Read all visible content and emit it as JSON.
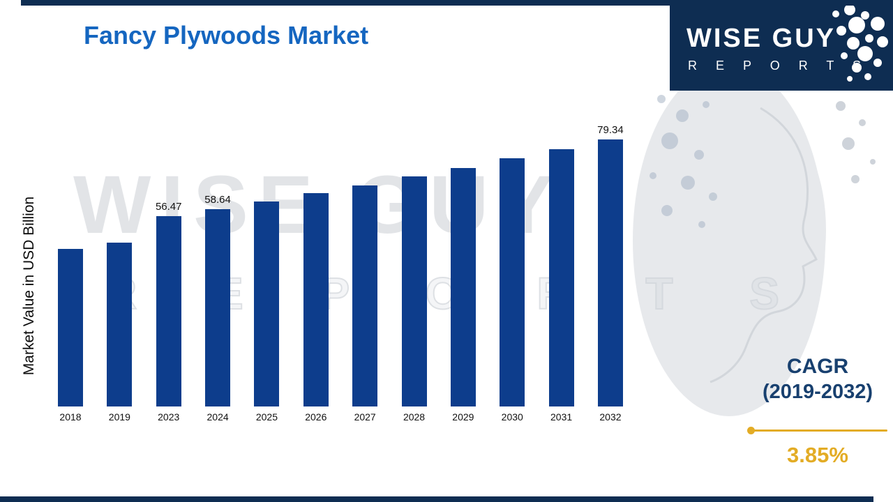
{
  "page": {
    "title": "Fancy Plywoods Market",
    "y_axis_label": "Market Value in USD Billion"
  },
  "branding": {
    "logo_line1": "WISE GUY",
    "logo_line2": "R E P O R T S",
    "watermark_line1": "WISE GUY",
    "watermark_line2": "R E P O R T S"
  },
  "cagr": {
    "label": "CAGR",
    "range": "(2019-2032)",
    "value": "3.85%"
  },
  "colors": {
    "bar": "#0d3d8c",
    "title": "#1566c0",
    "navy": "#0e2d52",
    "gold": "#e3ac25",
    "cagr_text": "#18406f"
  },
  "chart_data": {
    "type": "bar",
    "title": "Fancy Plywoods Market",
    "xlabel": "",
    "ylabel": "Market Value in USD Billion",
    "categories": [
      "2018",
      "2019",
      "2023",
      "2024",
      "2025",
      "2026",
      "2027",
      "2028",
      "2029",
      "2030",
      "2031",
      "2032"
    ],
    "values": [
      46.73,
      48.53,
      56.47,
      58.64,
      60.9,
      63.24,
      65.68,
      68.21,
      70.83,
      73.56,
      76.39,
      79.34
    ],
    "data_labels": [
      "",
      "",
      "56.47",
      "58.64",
      "",
      "",
      "",
      "",
      "",
      "",
      "",
      "79.34"
    ],
    "ylim": [
      0,
      90
    ],
    "grid": false,
    "legend": false,
    "bar_color": "#0d3d8c"
  }
}
